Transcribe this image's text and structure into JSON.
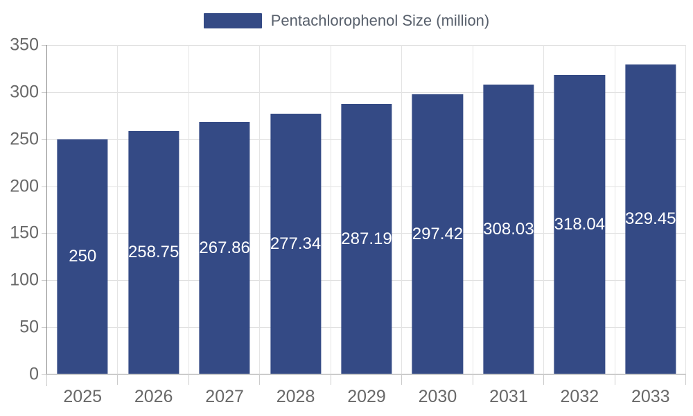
{
  "legend": {
    "label": "Pentachlorophenol Size (million)"
  },
  "chart_data": {
    "type": "bar",
    "title": "",
    "xlabel": "",
    "ylabel": "",
    "legend_entries": [
      "Pentachlorophenol Size (million)"
    ],
    "legend_position": "top-center",
    "categories": [
      "2025",
      "2026",
      "2027",
      "2028",
      "2029",
      "2030",
      "2031",
      "2032",
      "2033"
    ],
    "values": [
      250,
      258.75,
      267.86,
      277.34,
      287.19,
      297.42,
      308.03,
      318.04,
      329.45
    ],
    "value_labels": [
      "250",
      "258.75",
      "267.86",
      "277.34",
      "287.19",
      "297.42",
      "308.03",
      "318.04",
      "329.45"
    ],
    "ylim": [
      0,
      350
    ],
    "yticks": [
      0,
      50,
      100,
      150,
      200,
      250,
      300,
      350
    ],
    "ytick_labels": [
      "0",
      "50",
      "100",
      "150",
      "200",
      "250",
      "300",
      "350"
    ],
    "grid": true,
    "colors": {
      "bar": "#344a85",
      "value_label": "#ffffff",
      "axis_text": "#686868",
      "legend_text": "#58606c",
      "gridline": "#e0e0e0",
      "vertical_gridline": "#e4e4e4",
      "axis_line": "#8c8c8c",
      "baseline": "#cccccc",
      "tick": "#cccccc",
      "background": "#ffffff"
    }
  }
}
